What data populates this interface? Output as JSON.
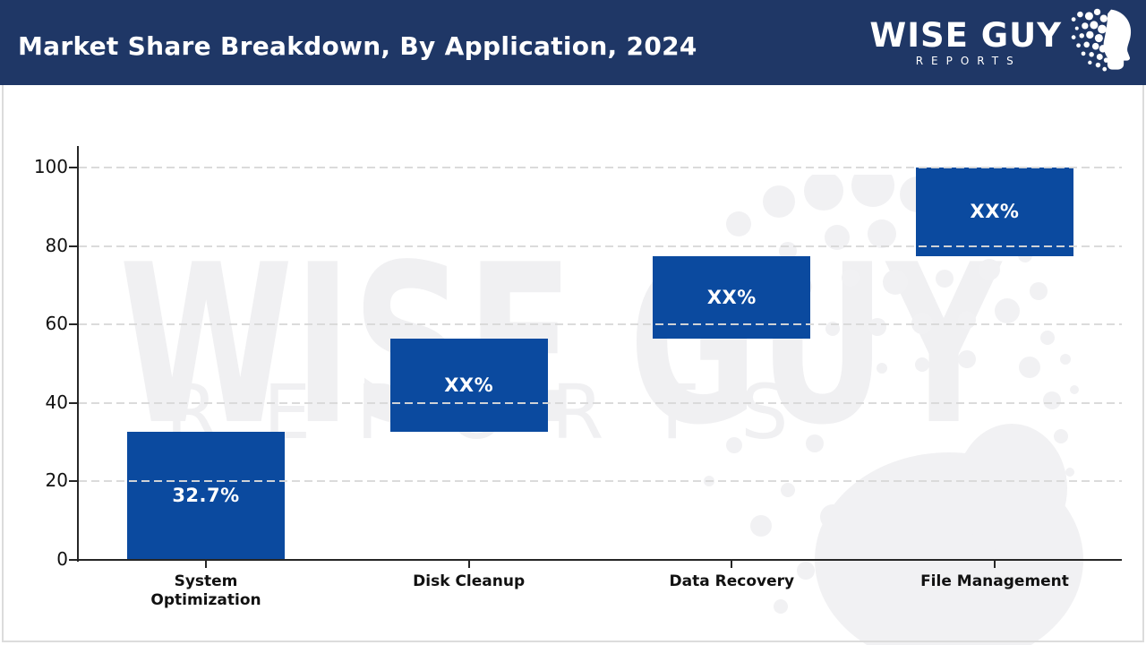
{
  "header": {
    "title": "Market Share Breakdown, By Application, 2024",
    "brand": {
      "line1": "WISE GUY",
      "line2": "REPORTS"
    },
    "background_color": "#1f3766"
  },
  "watermark": {
    "line1": "WISE GUY",
    "line2": "R E P O R T S"
  },
  "chart_data": {
    "type": "bar",
    "subtype": "waterfall",
    "title": "Market Share Breakdown, By Application, 2024",
    "xlabel": "",
    "ylabel": "",
    "ylim": [
      0,
      100
    ],
    "yticks": [
      0,
      20,
      40,
      60,
      80,
      100
    ],
    "grid": "horizontal-dashed",
    "legend": "none",
    "bar_color": "#0b4a9f",
    "categories": [
      "System Optimization",
      "Disk Cleanup",
      "Data Recovery",
      "File Management"
    ],
    "segments": [
      {
        "category": "System Optimization",
        "label_lines": [
          "System",
          "Optimization"
        ],
        "start": 0,
        "end": 32.7,
        "data_label": "32.7%"
      },
      {
        "category": "Disk Cleanup",
        "label_lines": [
          "Disk Cleanup"
        ],
        "start": 32.7,
        "end": 56.5,
        "data_label": "XX%"
      },
      {
        "category": "Data Recovery",
        "label_lines": [
          "Data Recovery"
        ],
        "start": 56.5,
        "end": 77.5,
        "data_label": "XX%"
      },
      {
        "category": "File Management",
        "label_lines": [
          "File Management"
        ],
        "start": 77.5,
        "end": 100,
        "data_label": "XX%"
      }
    ]
  }
}
